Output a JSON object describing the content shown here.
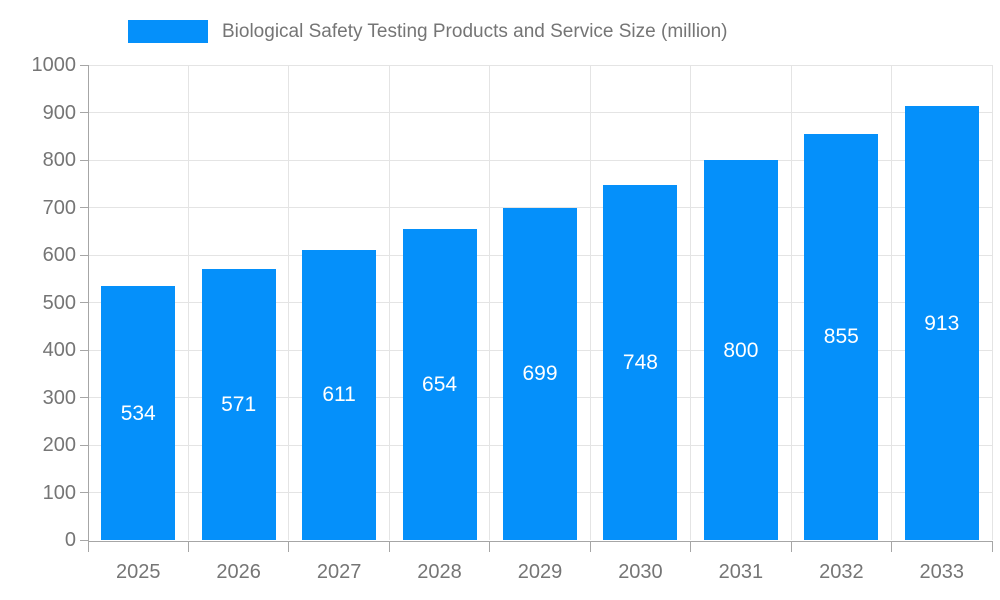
{
  "legend": {
    "label": "Biological Safety Testing Products and Service Size (million)",
    "swatch_color": "#0590fa"
  },
  "chart_data": {
    "type": "bar",
    "title": "Biological Safety Testing Products and Service Size (million)",
    "categories": [
      "2025",
      "2026",
      "2027",
      "2028",
      "2029",
      "2030",
      "2031",
      "2032",
      "2033"
    ],
    "values": [
      534,
      571,
      611,
      654,
      699,
      748,
      800,
      855,
      913
    ],
    "series": [
      {
        "name": "Biological Safety Testing Products and Service Size (million)",
        "values": [
          534,
          571,
          611,
          654,
          699,
          748,
          800,
          855,
          913
        ]
      }
    ],
    "xlabel": "",
    "ylabel": "",
    "ylim": [
      0,
      1000
    ],
    "ytick_step": 100,
    "ytick_labels": [
      "0",
      "100",
      "200",
      "300",
      "400",
      "500",
      "600",
      "700",
      "800",
      "900",
      "1000"
    ],
    "grid": true,
    "legend_position": "top",
    "value_labels": "inside-center",
    "colors": {
      "bar": "#0590fa",
      "bar_label": "#ffffff",
      "axis_text": "#757575",
      "grid_line": "#e4e4e4",
      "axis_line": "#a6a6a6",
      "background": "#ffffff"
    }
  }
}
